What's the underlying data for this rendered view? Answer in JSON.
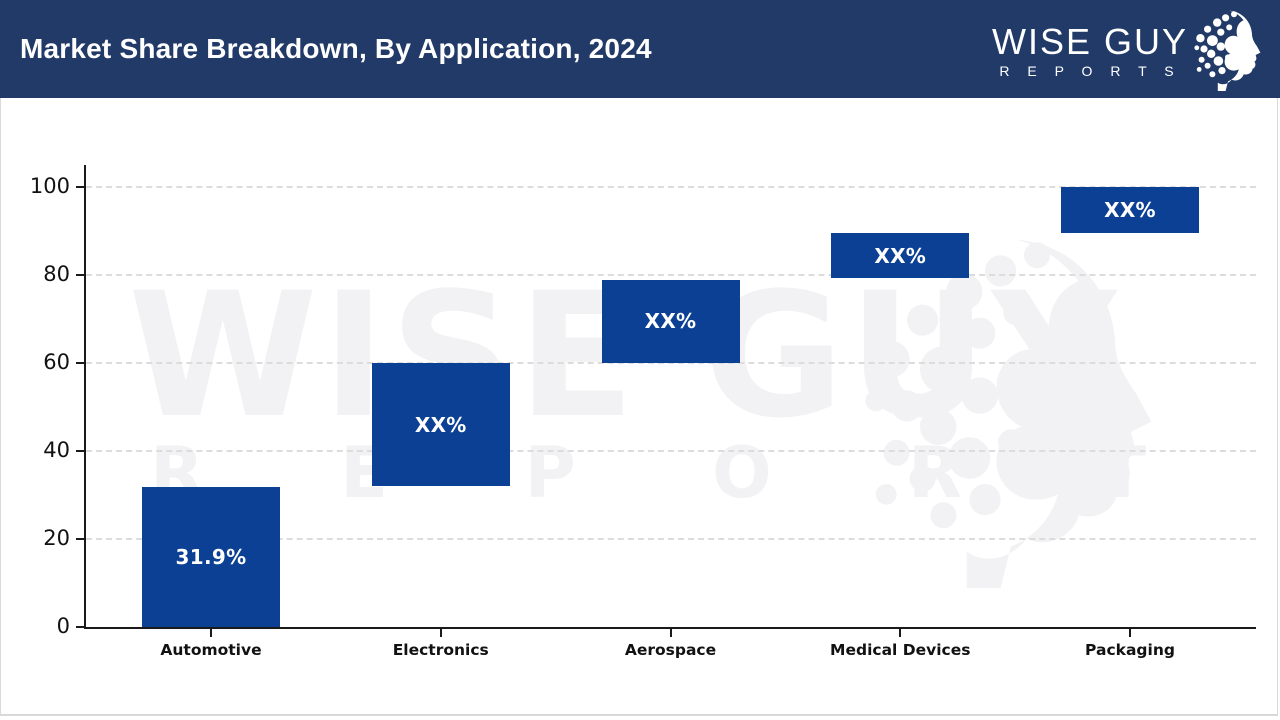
{
  "header": {
    "title": "Market Share Breakdown, By Application, 2024",
    "logo": {
      "line1": "WISE GUY",
      "line2": "R E P O R T S"
    }
  },
  "watermark": {
    "line1": "WISE GUY",
    "line2": "R E P O R T S"
  },
  "chart_data": {
    "type": "bar",
    "subtype": "floating-segment-waterfall",
    "title": "Market Share Breakdown, By Application, 2024",
    "categories": [
      "Automotive",
      "Electronics",
      "Aerospace",
      "Medical Devices",
      "Packaging"
    ],
    "bars": [
      {
        "category": "Automotive",
        "start": 0,
        "end": 31.9,
        "label": "31.9%"
      },
      {
        "category": "Electronics",
        "start": 32,
        "end": 60,
        "label": "XX%"
      },
      {
        "category": "Aerospace",
        "start": 60,
        "end": 78.9,
        "label": "XX%"
      },
      {
        "category": "Medical Devices",
        "start": 79.3,
        "end": 89.5,
        "label": "XX%"
      },
      {
        "category": "Packaging",
        "start": 89.5,
        "end": 100,
        "label": "XX%"
      }
    ],
    "yticks": [
      0,
      20,
      40,
      60,
      80,
      100
    ],
    "ylim": [
      0,
      105
    ],
    "xlabel": "",
    "ylabel": "",
    "legend": "none",
    "grid": "horizontal-dashed",
    "bar_color": "#0C4094",
    "bar_label_color": "#FFFFFF"
  },
  "colors": {
    "header_bg": "#223A68",
    "bar_blue": "#0C4094",
    "watermark": "#F2F2F4",
    "gridline": "#DCDCDC",
    "axis": "#1A1A1A"
  }
}
